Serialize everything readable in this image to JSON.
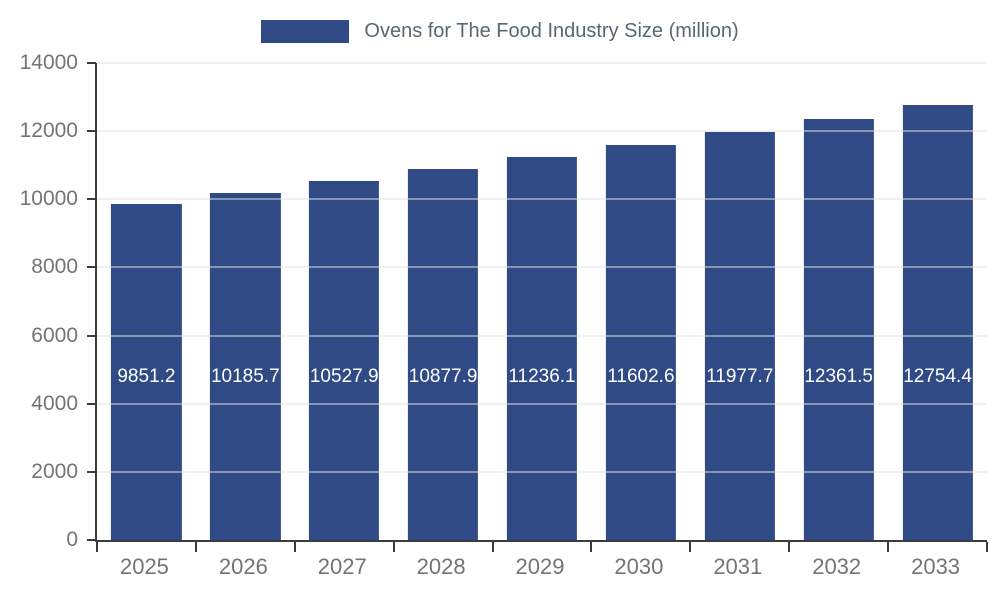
{
  "chart_data": {
    "type": "bar",
    "title": "Ovens for The Food Industry Size (million)",
    "categories": [
      "2025",
      "2026",
      "2027",
      "2028",
      "2029",
      "2030",
      "2031",
      "2032",
      "2033"
    ],
    "values": [
      9851.2,
      10185.7,
      10527.9,
      10877.9,
      11236.1,
      11602.6,
      11977.7,
      12361.5,
      12754.4
    ],
    "value_labels": [
      "9851.2",
      "10185.7",
      "10527.9",
      "10877.9",
      "11236.1",
      "11602.6",
      "11977.7",
      "12361.5",
      "12754.4"
    ],
    "xlabel": "",
    "ylabel": "",
    "ylim": [
      0,
      14000
    ],
    "yticks": [
      0,
      2000,
      4000,
      6000,
      8000,
      10000,
      12000,
      14000
    ],
    "ytick_labels": [
      "0",
      "2000",
      "4000",
      "6000",
      "8000",
      "10000",
      "12000",
      "14000"
    ],
    "grid": "horizontal",
    "legend_position": "top-center",
    "colors": {
      "bar": "#2f4a85",
      "axis": "#3b3b3b",
      "grid": "#e0e0e0",
      "tick_text": "#747474",
      "legend_text": "#596673",
      "bar_label_text": "#ffffff",
      "background": "#ffffff"
    }
  }
}
